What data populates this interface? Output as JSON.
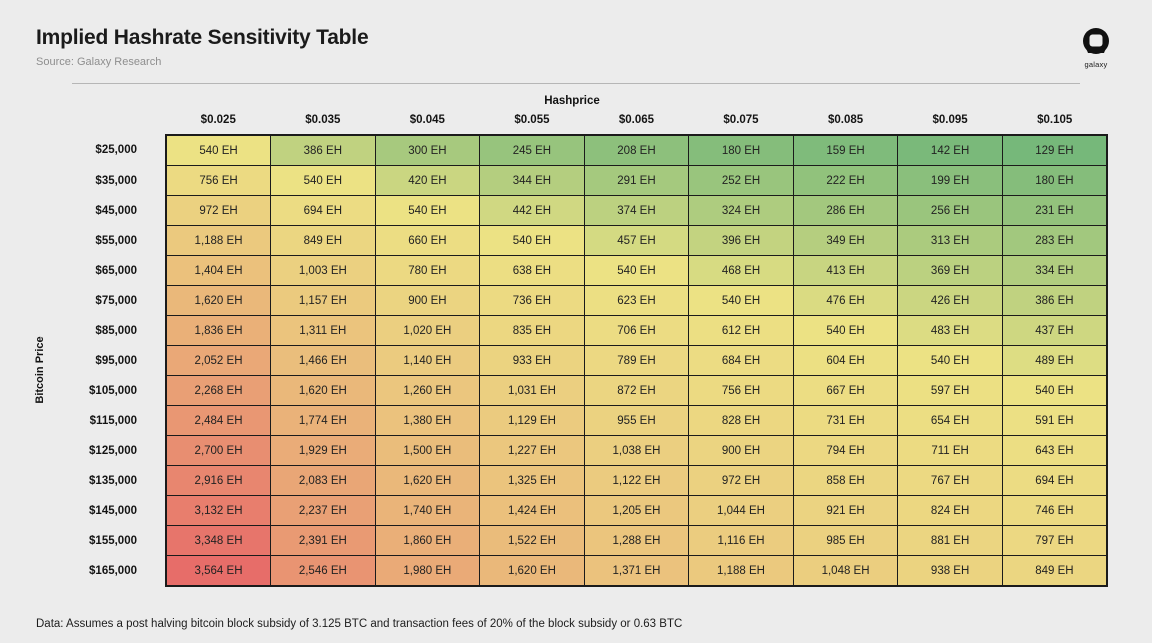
{
  "header": {
    "source": "Source: Galaxy Research",
    "logo_text": "galaxy"
  },
  "footer": {
    "note": "Data: Assumes a post halving bitcoin block subsidy of 3.125 BTC and transaction fees of 20% of the block subsidy or 0.63 BTC"
  },
  "chart_data": {
    "type": "heatmap",
    "title": "Implied Hashrate Sensitivity Table",
    "xlabel": "Hashprice",
    "ylabel": "Bitcoin Price",
    "x": [
      "$0.025",
      "$0.035",
      "$0.045",
      "$0.055",
      "$0.065",
      "$0.075",
      "$0.085",
      "$0.095",
      "$0.105"
    ],
    "y": [
      "$25,000",
      "$35,000",
      "$45,000",
      "$55,000",
      "$65,000",
      "$75,000",
      "$85,000",
      "$95,000",
      "$105,000",
      "$115,000",
      "$125,000",
      "$135,000",
      "$145,000",
      "$155,000",
      "$165,000"
    ],
    "unit": "EH",
    "values": [
      [
        540,
        386,
        300,
        245,
        208,
        180,
        159,
        142,
        129
      ],
      [
        756,
        540,
        420,
        344,
        291,
        252,
        222,
        199,
        180
      ],
      [
        972,
        694,
        540,
        442,
        374,
        324,
        286,
        256,
        231
      ],
      [
        1188,
        849,
        660,
        540,
        457,
        396,
        349,
        313,
        283
      ],
      [
        1404,
        1003,
        780,
        638,
        540,
        468,
        413,
        369,
        334
      ],
      [
        1620,
        1157,
        900,
        736,
        623,
        540,
        476,
        426,
        386
      ],
      [
        1836,
        1311,
        1020,
        835,
        706,
        612,
        540,
        483,
        437
      ],
      [
        2052,
        1466,
        1140,
        933,
        789,
        684,
        604,
        540,
        489
      ],
      [
        2268,
        1620,
        1260,
        1031,
        872,
        756,
        667,
        597,
        540
      ],
      [
        2484,
        1774,
        1380,
        1129,
        955,
        828,
        731,
        654,
        591
      ],
      [
        2700,
        1929,
        1500,
        1227,
        1038,
        900,
        794,
        711,
        643
      ],
      [
        2916,
        2083,
        1620,
        1325,
        1122,
        972,
        858,
        767,
        694
      ],
      [
        3132,
        2237,
        1740,
        1424,
        1205,
        1044,
        921,
        824,
        746
      ],
      [
        3348,
        2391,
        1860,
        1522,
        1288,
        1116,
        985,
        881,
        797
      ],
      [
        3564,
        2546,
        1980,
        1620,
        1371,
        1188,
        1048,
        938,
        849
      ]
    ],
    "color_scale": {
      "min_color": "#76b87a",
      "mid_color": "#ece284",
      "max_color": "#e76d69",
      "min_value": 129,
      "mid_value": 540,
      "max_value": 3564
    },
    "legend": "none",
    "grid": "cell-borders"
  }
}
